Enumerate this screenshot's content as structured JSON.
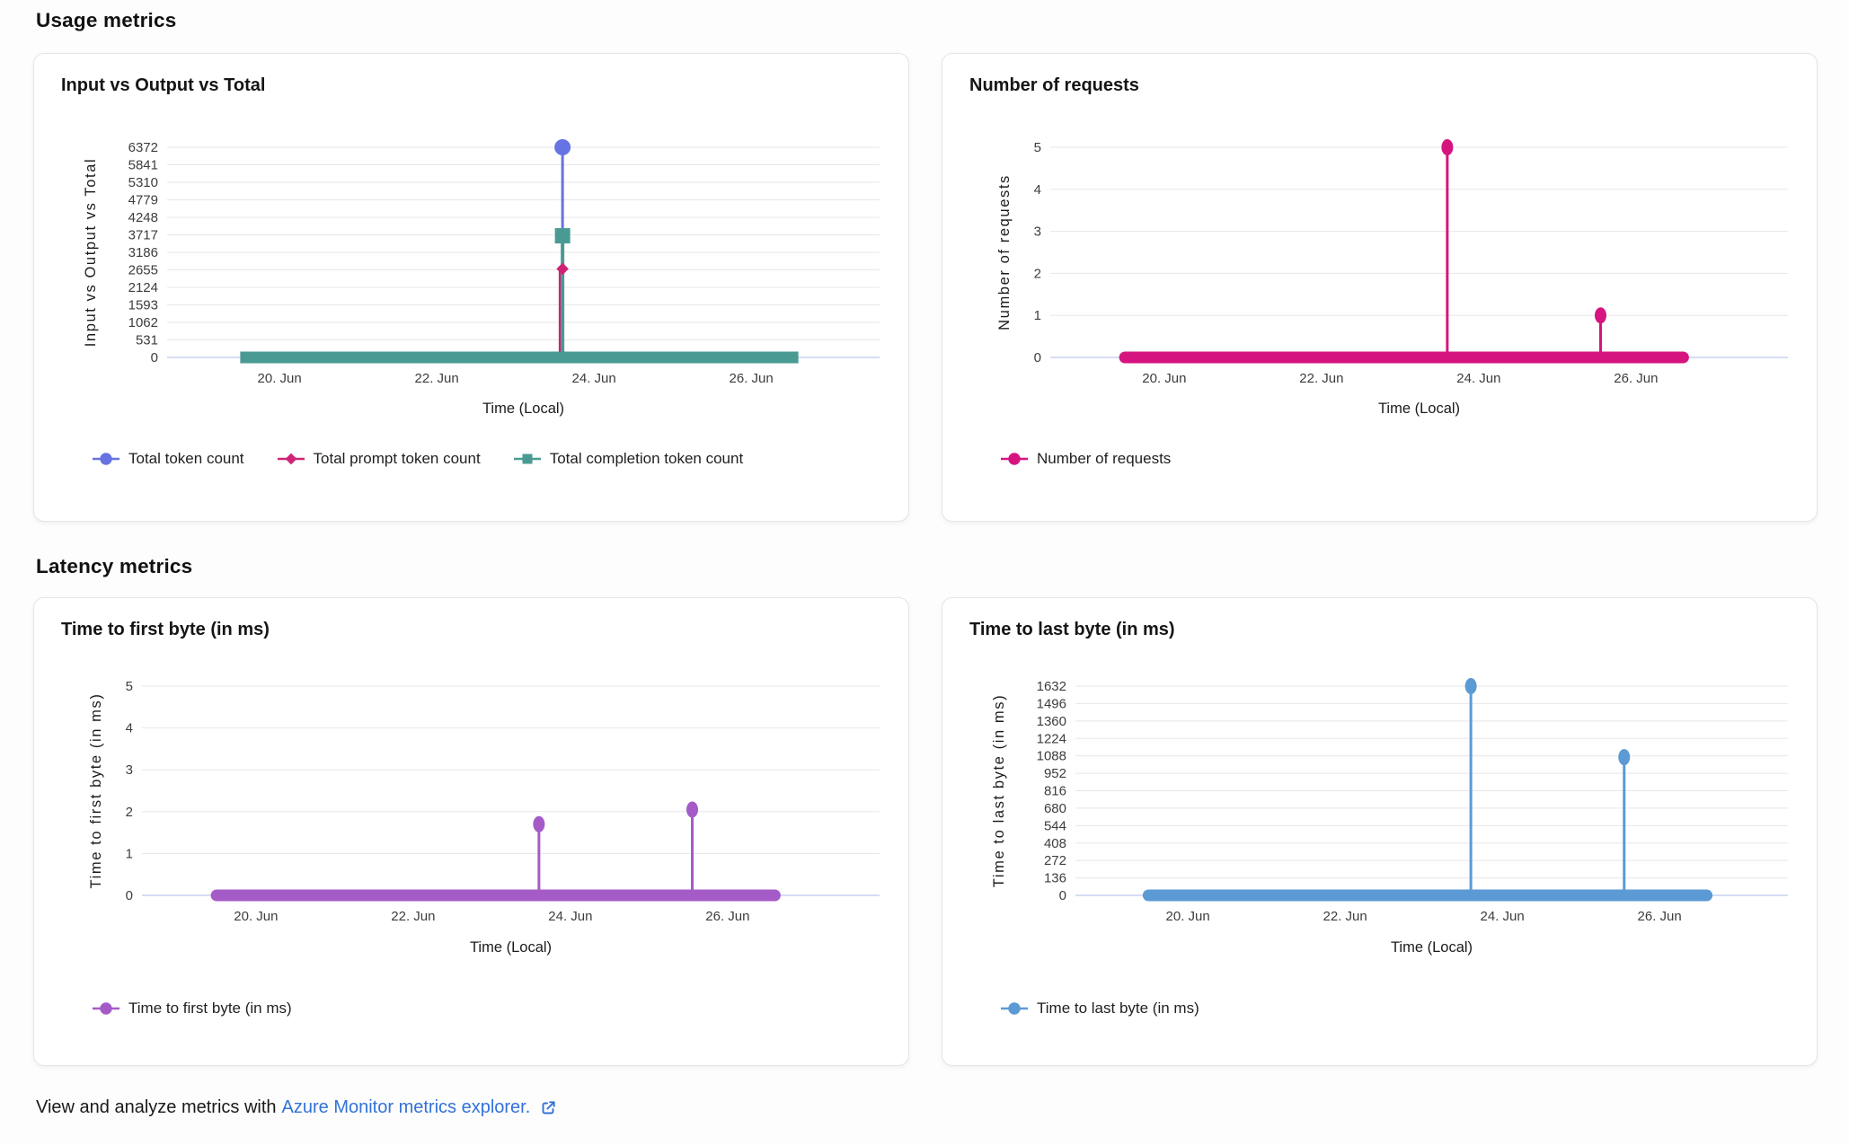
{
  "page": {
    "sections": [
      {
        "heading": "Usage metrics"
      },
      {
        "heading": "Latency metrics"
      }
    ],
    "footer": {
      "prefix": "View and analyze metrics with",
      "link_text": "Azure Monitor metrics explorer.",
      "icon": "external-link-icon",
      "link_color": "#3272d8"
    },
    "colors": {
      "axis_line": "#c7d2ee",
      "gridline": "#e7e7e8",
      "card_border": "#e5e5e8"
    }
  },
  "chart_data": [
    {
      "type": "line",
      "title": "Input vs Output vs Total",
      "ylabel": "Input vs Output vs Total",
      "xlabel": "Time (Local)",
      "x_tick_labels": [
        "20. Jun",
        "22. Jun",
        "24. Jun",
        "26. Jun"
      ],
      "x_tick_days": [
        20,
        22,
        24,
        26
      ],
      "y_ticks": [
        0,
        531,
        1062,
        1593,
        2124,
        2655,
        3186,
        3717,
        4248,
        4779,
        5310,
        5841,
        6372
      ],
      "ylim": [
        0,
        6372
      ],
      "grid": true,
      "legend_position": "bottom",
      "baseline_value": 0,
      "baseline_day_range": [
        19.5,
        26.6
      ],
      "series": [
        {
          "name": "Total token count",
          "color": "#6673e3",
          "marker": "circle",
          "points": [
            {
              "day": 23.6,
              "value": 6372
            }
          ]
        },
        {
          "name": "Total prompt token count",
          "color": "#ce2478",
          "marker": "diamond",
          "points": [
            {
              "day": 23.6,
              "value": 2684
            }
          ]
        },
        {
          "name": "Total completion token count",
          "color": "#4a9a94",
          "marker": "square",
          "points": [
            {
              "day": 23.6,
              "value": 3688
            }
          ]
        }
      ]
    },
    {
      "type": "line",
      "title": "Number of requests",
      "ylabel": "Number of requests",
      "xlabel": "Time (Local)",
      "x_tick_labels": [
        "20. Jun",
        "22. Jun",
        "24. Jun",
        "26. Jun"
      ],
      "x_tick_days": [
        20,
        22,
        24,
        26
      ],
      "y_ticks": [
        0,
        1,
        2,
        3,
        4,
        5
      ],
      "ylim": [
        0,
        5
      ],
      "grid": true,
      "legend_position": "bottom",
      "baseline_value": 0,
      "baseline_day_range": [
        19.5,
        26.6
      ],
      "series": [
        {
          "name": "Number of requests",
          "color": "#d6147f",
          "marker": "circle",
          "points": [
            {
              "day": 23.6,
              "value": 5
            },
            {
              "day": 25.55,
              "value": 1
            }
          ]
        }
      ]
    },
    {
      "type": "line",
      "title": "Time to first byte (in ms)",
      "ylabel": "Time to first byte (in ms)",
      "xlabel": "Time (Local)",
      "x_tick_labels": [
        "20. Jun",
        "22. Jun",
        "24. Jun",
        "26. Jun"
      ],
      "x_tick_days": [
        20,
        22,
        24,
        26
      ],
      "y_ticks": [
        0,
        1,
        2,
        3,
        4,
        5
      ],
      "ylim": [
        0,
        5
      ],
      "grid": true,
      "legend_position": "bottom",
      "baseline_value": 0,
      "baseline_day_range": [
        19.5,
        26.6
      ],
      "series": [
        {
          "name": "Time to first byte (in ms)",
          "color": "#a55bc7",
          "marker": "circle",
          "points": [
            {
              "day": 23.6,
              "value": 1.7
            },
            {
              "day": 25.55,
              "value": 2.05
            }
          ]
        }
      ]
    },
    {
      "type": "line",
      "title": "Time to last byte (in ms)",
      "ylabel": "Time to last byte (in ms)",
      "xlabel": "Time (Local)",
      "x_tick_labels": [
        "20. Jun",
        "22. Jun",
        "24. Jun",
        "26. Jun"
      ],
      "x_tick_days": [
        20,
        22,
        24,
        26
      ],
      "y_ticks": [
        0,
        136,
        272,
        408,
        544,
        680,
        816,
        952,
        1088,
        1224,
        1360,
        1496,
        1632
      ],
      "ylim": [
        0,
        1632
      ],
      "grid": true,
      "legend_position": "bottom",
      "baseline_value": 0,
      "baseline_day_range": [
        19.5,
        26.6
      ],
      "series": [
        {
          "name": "Time to last byte (in ms)",
          "color": "#5b9ad5",
          "marker": "circle",
          "points": [
            {
              "day": 23.6,
              "value": 1632
            },
            {
              "day": 25.55,
              "value": 1078
            }
          ]
        }
      ]
    }
  ]
}
